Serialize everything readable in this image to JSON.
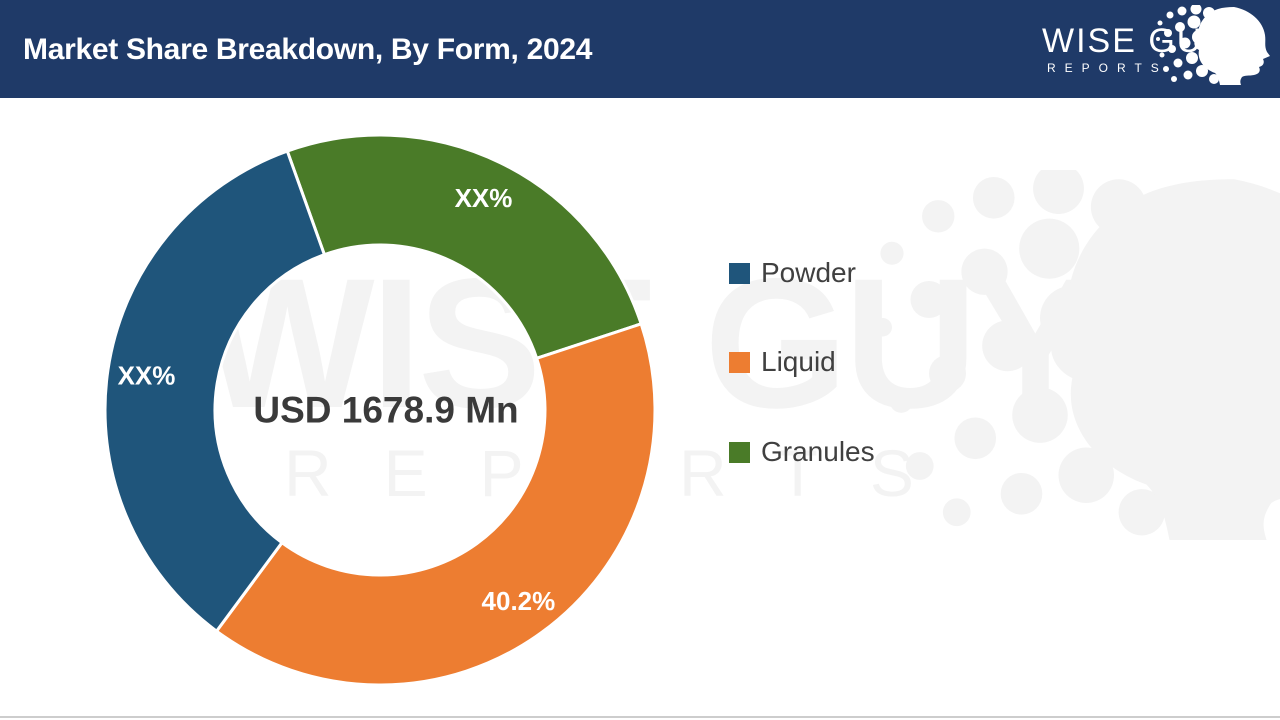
{
  "header": {
    "title": "Market Share Breakdown, By Form, 2024",
    "logo": {
      "line1": "WISE GUY",
      "line2": "REPORTS"
    }
  },
  "watermark": {
    "line1": "WISE GUY",
    "line2": "REPORTS"
  },
  "legend": {
    "position": "right",
    "items": [
      {
        "label": "Powder",
        "color": "#1f557b"
      },
      {
        "label": "Liquid",
        "color": "#ed7d31"
      },
      {
        "label": "Granules",
        "color": "#4a7b28"
      }
    ]
  },
  "chart_data": {
    "type": "pie",
    "subtype": "donut",
    "title": "Market Share Breakdown, By Form, 2024",
    "center_label": "USD 1678.9 Mn",
    "start_angle_deg": -19.7,
    "direction": "clockwise",
    "series": [
      {
        "name": "Granules",
        "display_label": "XX%",
        "percent_est": 25.4,
        "color": "#4a7b28"
      },
      {
        "name": "Liquid",
        "display_label": "40.2%",
        "percent": 40.2,
        "color": "#ed7d31"
      },
      {
        "name": "Powder",
        "display_label": "XX%",
        "percent_est": 34.4,
        "color": "#1f557b"
      }
    ],
    "outer_radius_px": 275,
    "inner_radius_px": 165,
    "label_radius_px": 236,
    "legend_position": "right"
  },
  "colors": {
    "header_bg": "#1f3a68",
    "segment_label_text": "#ffffff",
    "center_text": "#3a3a3a",
    "legend_text": "#404040",
    "watermark": "#f3f3f3",
    "bottom_line": "#cdcdcd",
    "background": "#ffffff"
  }
}
